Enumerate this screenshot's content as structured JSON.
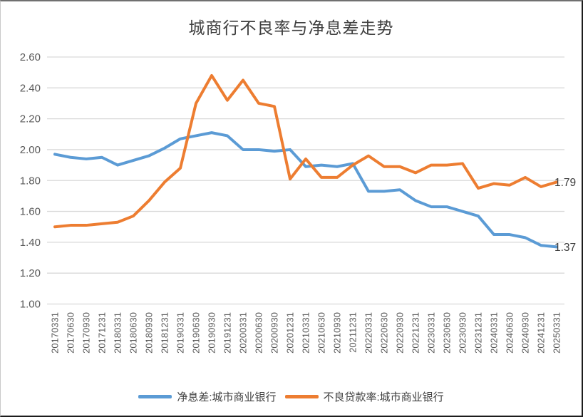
{
  "chart_data": {
    "type": "line",
    "title": "城商行不良率与净息差走势",
    "categories": [
      "20170331",
      "20170630",
      "20170930",
      "20171231",
      "20180331",
      "20180630",
      "20180930",
      "20181231",
      "20190331",
      "20190630",
      "20190930",
      "20191231",
      "20200331",
      "20200630",
      "20200930",
      "20201231",
      "20210331",
      "20210630",
      "20210930",
      "20211231",
      "20220331",
      "20220630",
      "20220930",
      "20221231",
      "20230331",
      "20230630",
      "20230930",
      "20231231",
      "20240331",
      "20240630",
      "20240930",
      "20241231",
      "20250331"
    ],
    "series": [
      {
        "name": "净息差:城市商业银行",
        "color": "#5B9BD5",
        "end_label": "1.37",
        "values": [
          1.97,
          1.95,
          1.94,
          1.95,
          1.9,
          1.93,
          1.96,
          2.01,
          2.07,
          2.09,
          2.11,
          2.09,
          2.0,
          2.0,
          1.99,
          2.0,
          1.89,
          1.9,
          1.89,
          1.91,
          1.73,
          1.73,
          1.74,
          1.67,
          1.63,
          1.63,
          1.6,
          1.57,
          1.45,
          1.45,
          1.43,
          1.38,
          1.37
        ]
      },
      {
        "name": "不良贷款率:城市商业银行",
        "color": "#ED7D31",
        "end_label": "1.79",
        "values": [
          1.5,
          1.51,
          1.51,
          1.52,
          1.53,
          1.57,
          1.67,
          1.79,
          1.88,
          2.3,
          2.48,
          2.32,
          2.45,
          2.3,
          2.28,
          1.81,
          1.94,
          1.82,
          1.82,
          1.9,
          1.96,
          1.89,
          1.89,
          1.85,
          1.9,
          1.9,
          1.91,
          1.75,
          1.78,
          1.77,
          1.82,
          1.76,
          1.79
        ]
      }
    ],
    "ylim": [
      1.0,
      2.6
    ],
    "ytick_labels": [
      "1.00",
      "1.20",
      "1.40",
      "1.60",
      "1.80",
      "2.00",
      "2.20",
      "2.40",
      "2.60"
    ],
    "grid": "horizontal",
    "legend_position": "bottom",
    "colors": {
      "gridline": "#D9D9D9",
      "axis_text": "#595959",
      "data_label_text": "#3b3b3b",
      "title_text": "#3f3f3f"
    }
  }
}
